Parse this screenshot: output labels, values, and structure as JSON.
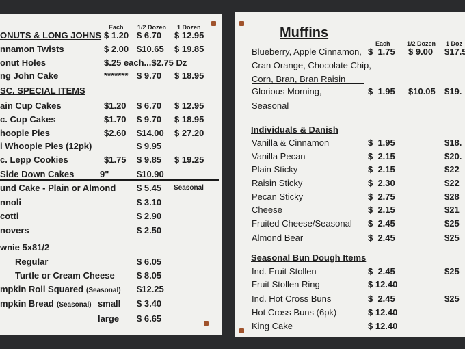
{
  "left_board": {
    "columns": [
      "Each",
      "1/2 Dozen",
      "1 Dozen"
    ],
    "rows": [
      {
        "heading": "ONUTS & LONG JOHNS",
        "each": "$ 1.20",
        "half_dozen": "$ 6.70",
        "dozen": "$ 12.95"
      },
      {
        "item": "nnamon Twists",
        "each": "$ 2.00",
        "half_dozen": "$10.65",
        "dozen": "$ 19.85"
      },
      {
        "item": "onut Holes",
        "each": "$.25 each...$2.75 Dz"
      },
      {
        "item": "ng John Cake",
        "each": "*******",
        "half_dozen": "$ 9.70",
        "dozen": "$ 18.95"
      },
      {
        "heading": "SC. SPECIAL ITEMS"
      },
      {
        "item": "ain Cup Cakes",
        "each": "$1.20",
        "half_dozen": "$ 6.70",
        "dozen": "$ 12.95"
      },
      {
        "item": "c. Cup Cakes",
        "each": "$1.70",
        "half_dozen": "$ 9.70",
        "dozen": "$ 18.95"
      },
      {
        "item": "hoopie Pies",
        "each": "$2.60",
        "half_dozen": "$14.00",
        "dozen": "$ 27.20"
      },
      {
        "item": "i Whoopie Pies (12pk)",
        "half_dozen": "$ 9.95"
      },
      {
        "item": "c. Lepp Cookies",
        "each": "$1.75",
        "half_dozen": "$ 9.85",
        "dozen": "$ 19.25"
      },
      {
        "item": "Side Down Cakes",
        "each": "9\"",
        "half_dozen": "$10.90"
      },
      {
        "item": "und Cake - Plain or Almond",
        "half_dozen": "$ 5.45",
        "dozen": "Seasonal"
      },
      {
        "item": "nnoli",
        "half_dozen": "$ 3.10"
      },
      {
        "item": "cotti",
        "half_dozen": "$ 2.90"
      },
      {
        "item": "novers",
        "half_dozen": "$ 2.50"
      },
      {
        "item": "wnie 5x81/2"
      },
      {
        "item": "Regular",
        "half_dozen": "$ 6.05"
      },
      {
        "item": "Turtle or Cream Cheese",
        "half_dozen": "$ 8.05"
      },
      {
        "item": "mpkin Roll Squared",
        "note": "(Seasonal)",
        "half_dozen": "$12.25"
      },
      {
        "item": "mpkin Bread",
        "note": "(Seasonal)",
        "each": "small",
        "half_dozen": "$ 3.40"
      },
      {
        "each": "large",
        "half_dozen": "$ 6.65"
      }
    ]
  },
  "right_board": {
    "title": "Muffins",
    "columns": [
      "Each",
      "1/2 Dozen",
      "1 Doz"
    ],
    "rows": [
      {
        "item": "Blueberry, Apple Cinnamon,",
        "each": "$  1.75",
        "half_dozen": "$ 9.00",
        "dozen": "$17.5"
      },
      {
        "item": "Cran Orange, Chocolate Chip,"
      },
      {
        "item": "Corn, Bran, Bran Raisin"
      },
      {
        "item": "Glorious Morning,",
        "each": "$  1.95",
        "half_dozen": "$10.05",
        "dozen": "$19."
      },
      {
        "item": "Seasonal"
      },
      {
        "heading": "Individuals & Danish"
      },
      {
        "item": "Vanilla & Cinnamon",
        "each": "$  1.95",
        "dozen": "$18."
      },
      {
        "item": "Vanilla Pecan",
        "each": "$  2.15",
        "dozen": "$20."
      },
      {
        "item": "Plain Sticky",
        "each": "$  2.15",
        "dozen": "$22"
      },
      {
        "item": "Raisin Sticky",
        "each": "$  2.30",
        "dozen": "$22"
      },
      {
        "item": "Pecan Sticky",
        "each": "$  2.75",
        "dozen": "$28"
      },
      {
        "item": "Cheese",
        "each": "$  2.15",
        "dozen": "$21"
      },
      {
        "item": "Fruited Cheese/Seasonal",
        "each": "$  2.45",
        "dozen": "$25"
      },
      {
        "item": "Almond Bear",
        "each": "$  2.45",
        "dozen": "$25"
      },
      {
        "heading": "Seasonal Bun Dough Items"
      },
      {
        "item": "Ind. Fruit Stollen",
        "each": "$  2.45",
        "dozen": "$25"
      },
      {
        "item": "Fruit Stollen Ring",
        "each": "$ 12.40"
      },
      {
        "item": "Ind. Hot Cross Buns",
        "each": "$  2.45",
        "dozen": "$25"
      },
      {
        "item": "Hot Cross Buns (6pk)",
        "each": "$ 12.40"
      },
      {
        "item": "King Cake",
        "each": "$ 12.40"
      }
    ]
  }
}
